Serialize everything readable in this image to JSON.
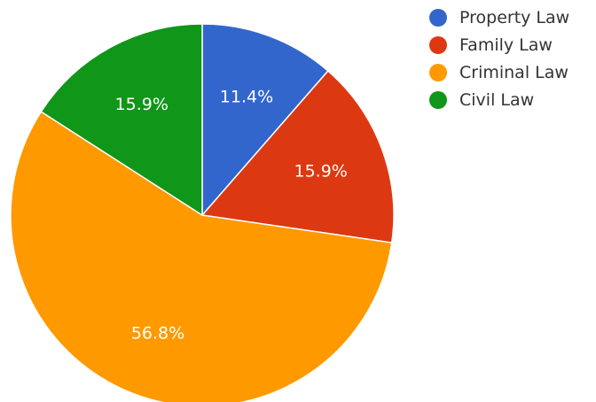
{
  "chart_data": {
    "type": "pie",
    "title": "",
    "start_angle_deg": 0,
    "direction": "clockwise",
    "legend_position": "right",
    "label_format": "percent_1dp",
    "slices": [
      {
        "name": "Property Law",
        "value": 11.4,
        "label": "11.4%",
        "color": "#3366cc"
      },
      {
        "name": "Family Law",
        "value": 15.9,
        "label": "15.9%",
        "color": "#dc3912"
      },
      {
        "name": "Criminal Law",
        "value": 56.8,
        "label": "56.8%",
        "color": "#ff9900"
      },
      {
        "name": "Civil Law",
        "value": 15.9,
        "label": "15.9%",
        "color": "#109618"
      }
    ]
  }
}
